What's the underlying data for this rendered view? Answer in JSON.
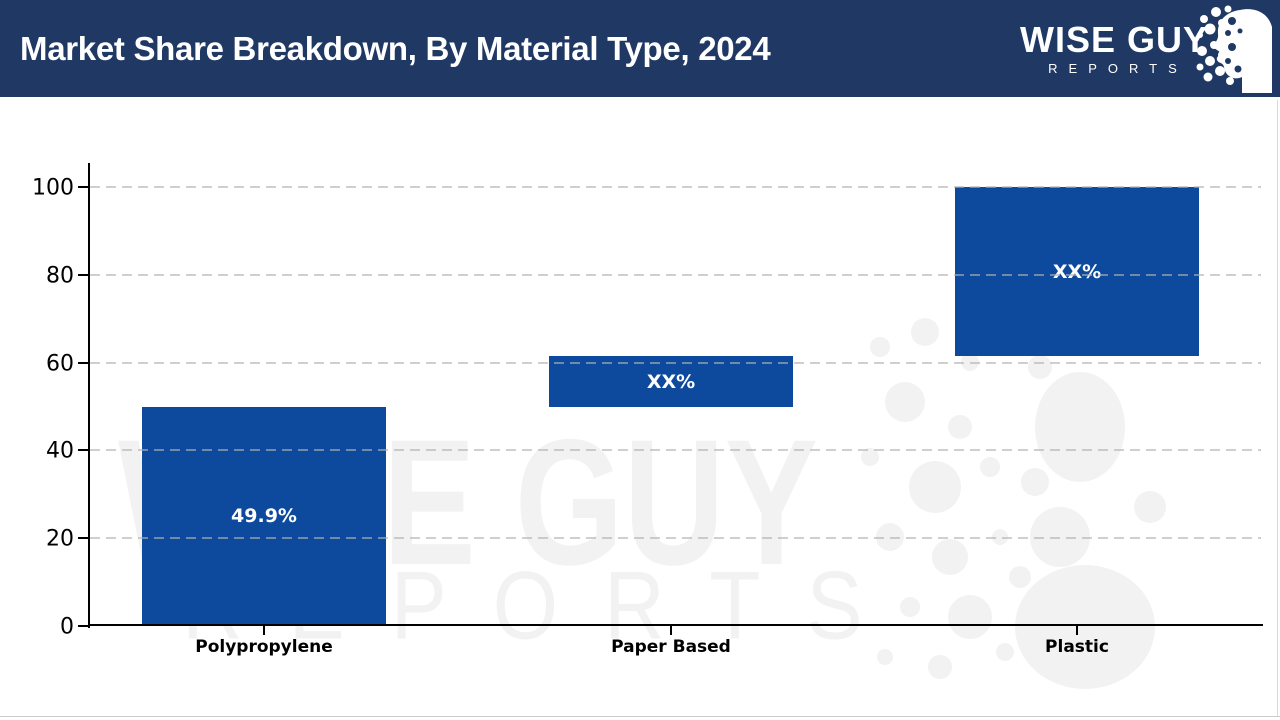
{
  "header": {
    "title": "Market Share Breakdown, By Material Type, 2024",
    "logo": {
      "name": "WISE GUY",
      "subname": "REPORTS"
    }
  },
  "watermark": {
    "line1": "WISE GUY",
    "line2": "REPORTS"
  },
  "chart_data": {
    "type": "waterfall",
    "title": "Market Share Breakdown, By Material Type, 2024",
    "categories": [
      "Polypropylene",
      "Paper Based",
      "Plastic"
    ],
    "segments": [
      {
        "category": "Polypropylene",
        "start": 0,
        "end": 49.9,
        "label": "49.9%",
        "estimated": false
      },
      {
        "category": "Paper Based",
        "start": 49.9,
        "end": 61.4,
        "label": "XX%",
        "estimated": true
      },
      {
        "category": "Plastic",
        "start": 61.4,
        "end": 100,
        "label": "XX%",
        "estimated": true
      }
    ],
    "ylim": [
      0,
      100
    ],
    "yticks": [
      0,
      20,
      40,
      60,
      80,
      100
    ],
    "xlabel": "",
    "ylabel": "",
    "grid": "horizontal-dashed",
    "legend": null,
    "bar_color": "#0d4a9e",
    "bar_label_color": "#ffffff"
  },
  "colors": {
    "header_bg": "#1f3864",
    "bar": "#0d4a9e",
    "grid": "#d9d9d9",
    "watermark": "#f2f2f2",
    "axis": "#000000"
  }
}
